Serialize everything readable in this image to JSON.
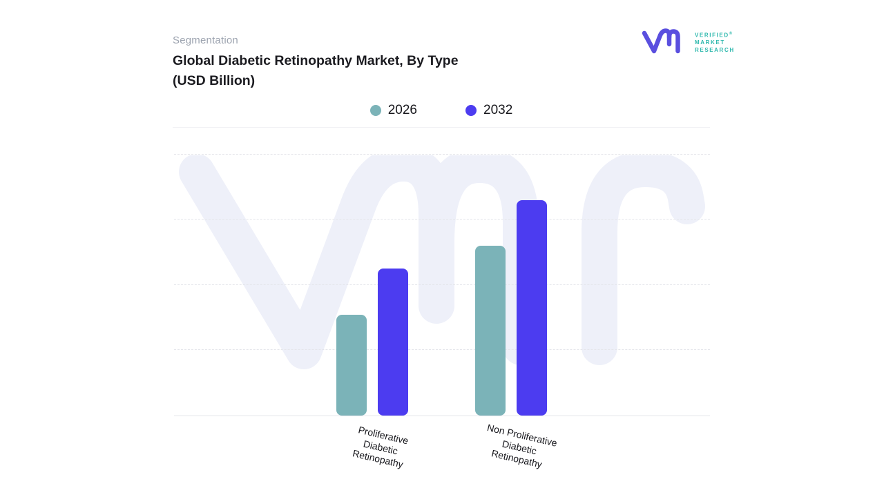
{
  "header": {
    "eyebrow": "Segmentation",
    "title_line1": "Global Diabetic Retinopathy Market, By Type",
    "title_line2": "(USD Billion)"
  },
  "logo": {
    "brand_lines": [
      "VERIFIED",
      "MARKET",
      "RESEARCH"
    ],
    "registered_mark": "®",
    "monogram_color": "#5A4FDF",
    "text_color": "#2EB8AD"
  },
  "chart_data": {
    "type": "bar",
    "title": "Global Diabetic Retinopathy Market, By Type (USD Billion)",
    "categories": [
      "Proliferative Diabetic Retinopathy",
      "Non Proliferative Diabetic Retinopathy"
    ],
    "series": [
      {
        "name": "2026",
        "color": "#7BB3B8",
        "values": [
          1.55,
          2.6
        ]
      },
      {
        "name": "2032",
        "color": "#4C3CF0",
        "values": [
          2.25,
          3.3
        ]
      }
    ],
    "xlabel": "",
    "ylabel": "",
    "ylim": [
      0,
      4
    ],
    "y_gridline_interval": 1,
    "y_tick_labels_visible": false,
    "gridline_style": "dashed",
    "legend_position": "top-center",
    "values_note": "USD Billion; y-axis has no numeric labels, values estimated from gridline spacing"
  },
  "xaxis_labels": [
    {
      "lines": [
        "Proliferative",
        "Diabetic",
        "Retinopathy"
      ]
    },
    {
      "lines": [
        "Non Proliferative",
        "Diabetic",
        "Retinopathy"
      ]
    }
  ],
  "watermark": {
    "label": "vmr-monogram-watermark",
    "color": "#EEF0F9"
  }
}
